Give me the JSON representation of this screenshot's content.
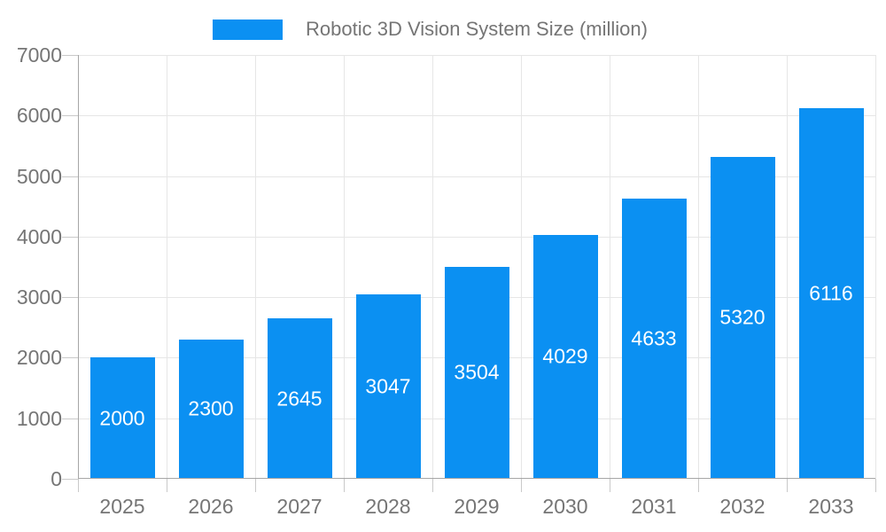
{
  "legend": {
    "label": "Robotic 3D Vision System Size (million)"
  },
  "chart_data": {
    "type": "bar",
    "title": "Robotic 3D Vision System Size (million)",
    "categories": [
      "2025",
      "2026",
      "2027",
      "2028",
      "2029",
      "2030",
      "2031",
      "2032",
      "2033"
    ],
    "values": [
      2000,
      2300,
      2645,
      3047,
      3504,
      4029,
      4633,
      5320,
      6116
    ],
    "series": [
      {
        "name": "Robotic 3D Vision System Size (million)",
        "values": [
          2000,
          2300,
          2645,
          3047,
          3504,
          4029,
          4633,
          5320,
          6116
        ]
      }
    ],
    "xlabel": "",
    "ylabel": "",
    "ylim": [
      0,
      7000
    ],
    "ytick_step": 1000,
    "grid": true,
    "legend_position": "top",
    "bar_color": "#0b90f2",
    "value_label_color": "#ffffff",
    "axis_text_color": "#757575",
    "grid_color": "#e6e6e6",
    "axis_line_color": "#a6a6a6",
    "tick_color": "#c9c9c9",
    "background": "#ffffff"
  }
}
